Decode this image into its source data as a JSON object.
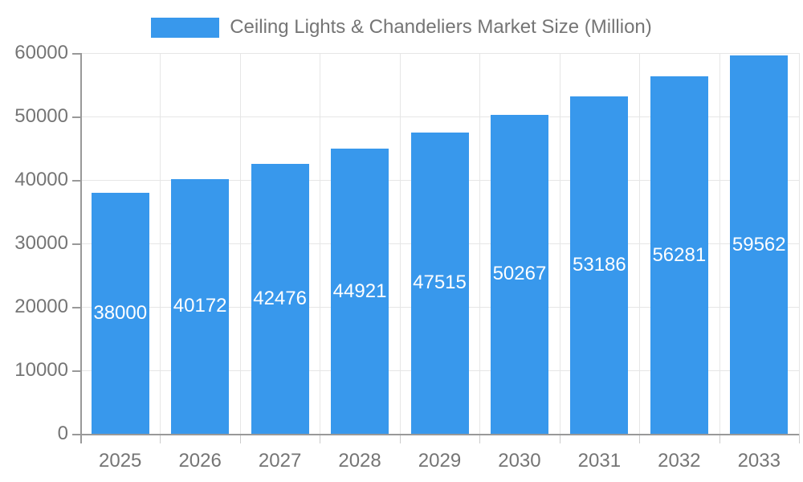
{
  "legend": {
    "label": "Ceiling Lights & Chandeliers Market Size (Million)"
  },
  "chart_data": {
    "type": "bar",
    "title": "Ceiling Lights & Chandeliers Market Size (Million)",
    "series_name": "Ceiling Lights & Chandeliers Market Size (Million)",
    "categories": [
      "2025",
      "2026",
      "2027",
      "2028",
      "2029",
      "2030",
      "2031",
      "2032",
      "2033"
    ],
    "values": [
      38000,
      40172,
      42476,
      44921,
      47515,
      50267,
      53186,
      56281,
      59562
    ],
    "xlabel": "",
    "ylabel": "",
    "ylim": [
      0,
      60000
    ],
    "yticks": [
      0,
      10000,
      20000,
      30000,
      40000,
      50000,
      60000
    ],
    "grid": true,
    "legend_position": "top",
    "value_label_style": "white-centered-inside-bar"
  },
  "colors": {
    "bar": "#3898ec",
    "axis_text": "#757575",
    "axis_line": "#999999",
    "gridline": "#e6e6e6",
    "tick": "#cccccc",
    "value_label": "#ffffff",
    "background": "#ffffff"
  }
}
